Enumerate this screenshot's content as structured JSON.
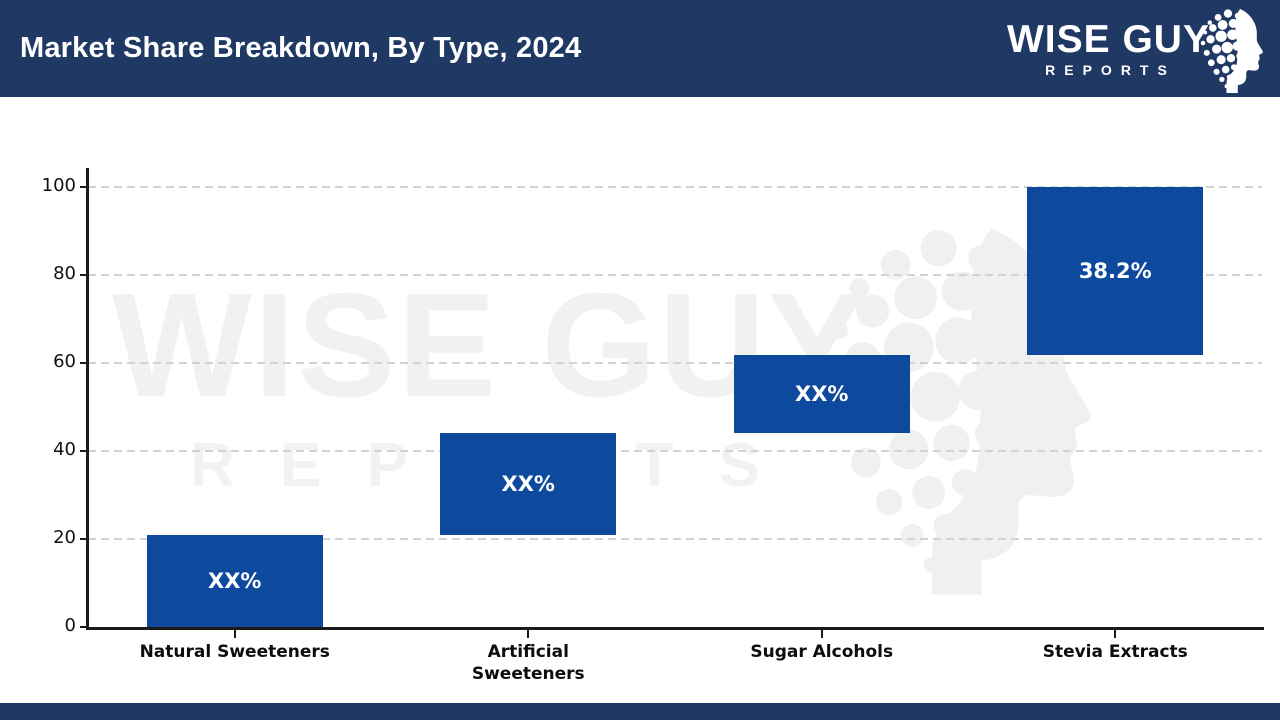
{
  "header": {
    "title": "Market Share Breakdown, By Type, 2024",
    "bg_color": "#1f3864",
    "logo": {
      "line1": "WISE GUY",
      "line2": "REPORTS"
    }
  },
  "watermark": {
    "line1": "WISE GUY",
    "line2": "R E P O R T S",
    "color": "#f1f1f1"
  },
  "footer": {
    "bg_color": "#1f3864"
  },
  "chart_data": {
    "type": "bar",
    "subtype": "waterfall",
    "title": "Market Share Breakdown, By Type, 2024",
    "categories": [
      "Natural Sweeteners",
      "Artificial Sweeteners",
      "Sugar Alcohols",
      "Stevia Extracts"
    ],
    "tick_labels": [
      "Natural Sweeteners",
      "Artificial\nSweeteners",
      "Sugar Alcohols",
      "Stevia Extracts"
    ],
    "segments": [
      {
        "category": "Natural Sweeteners",
        "start": 0,
        "end": 21,
        "label": "XX%"
      },
      {
        "category": "Artificial Sweeteners",
        "start": 21,
        "end": 44,
        "label": "XX%"
      },
      {
        "category": "Sugar Alcohols",
        "start": 44,
        "end": 61.8,
        "label": "XX%"
      },
      {
        "category": "Stevia Extracts",
        "start": 61.8,
        "end": 100,
        "label": "38.2%"
      }
    ],
    "yticks": [
      0,
      20,
      40,
      60,
      80,
      100
    ],
    "ylim": [
      0,
      100
    ],
    "xlabel": "",
    "ylabel": "",
    "legend": "none",
    "grid": "horizontal-dashed",
    "bar_color": "#0d4a9e",
    "bar_label_color": "#ffffff",
    "grid_color": "#d2d2d2",
    "axis_color": "#1a1a1a"
  }
}
